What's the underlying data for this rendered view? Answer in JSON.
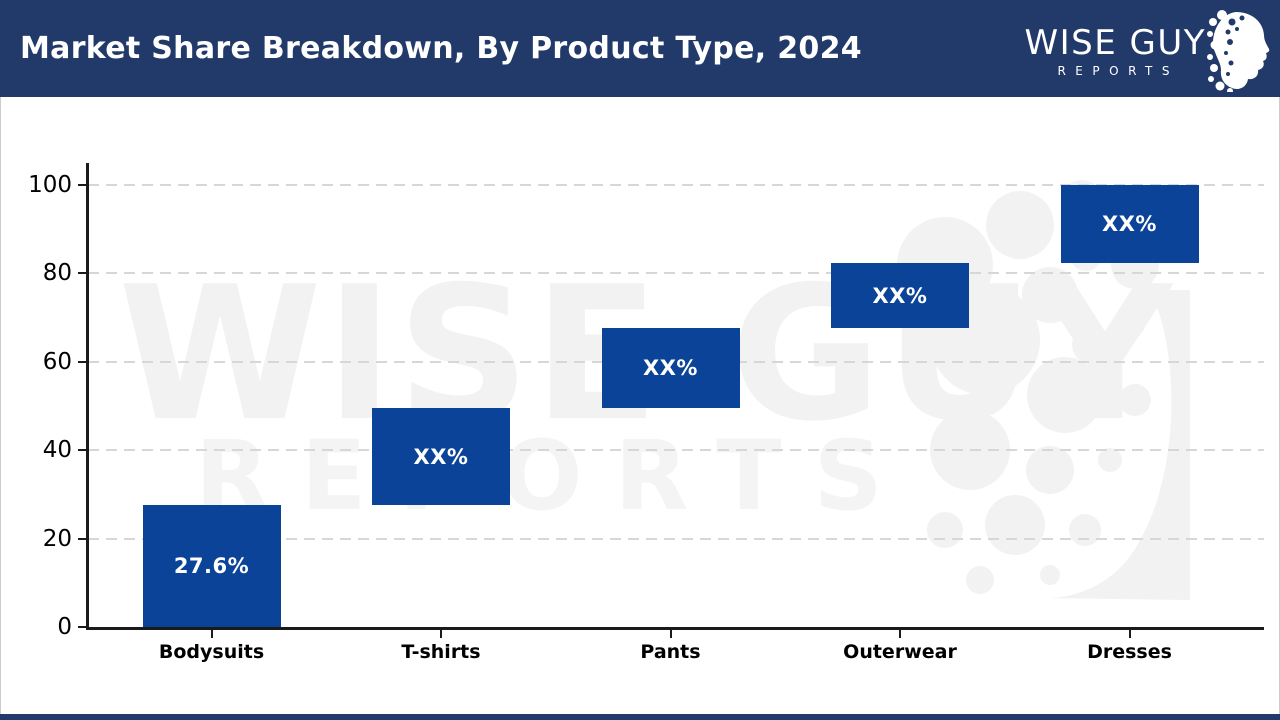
{
  "header": {
    "title": "Market Share Breakdown, By Product Type, 2024",
    "logo_line1": "WISE GUY",
    "logo_line2": "REPORTS"
  },
  "watermark": {
    "line1": "WISE GUY",
    "line2": "REPORTS"
  },
  "chart_data": {
    "type": "bar",
    "subtype": "waterfall",
    "title": "Market Share Breakdown, By Product Type, 2024",
    "categories": [
      "Bodysuits",
      "T-shirts",
      "Pants",
      "Outerwear",
      "Dresses"
    ],
    "segments": [
      {
        "category": "Bodysuits",
        "start": 0,
        "end": 27.6,
        "label": "27.6%"
      },
      {
        "category": "T-shirts",
        "start": 27.6,
        "end": 49.5,
        "label": "XX%"
      },
      {
        "category": "Pants",
        "start": 49.5,
        "end": 67.6,
        "label": "XX%"
      },
      {
        "category": "Outerwear",
        "start": 67.6,
        "end": 82.3,
        "label": "XX%"
      },
      {
        "category": "Dresses",
        "start": 82.3,
        "end": 100,
        "label": "XX%"
      }
    ],
    "yticks": [
      0,
      20,
      40,
      60,
      80,
      100
    ],
    "ylim": [
      0,
      105
    ],
    "xlabel": "",
    "ylabel": "",
    "grid": "horizontal-dashed",
    "legend": "none",
    "colors": {
      "bar": "#0a4397",
      "bar_label": "#ffffff",
      "header_bg": "#223a69",
      "grid": "#d7d7d7",
      "axis": "#1a1a1a",
      "watermark": "#f2f2f2"
    }
  }
}
